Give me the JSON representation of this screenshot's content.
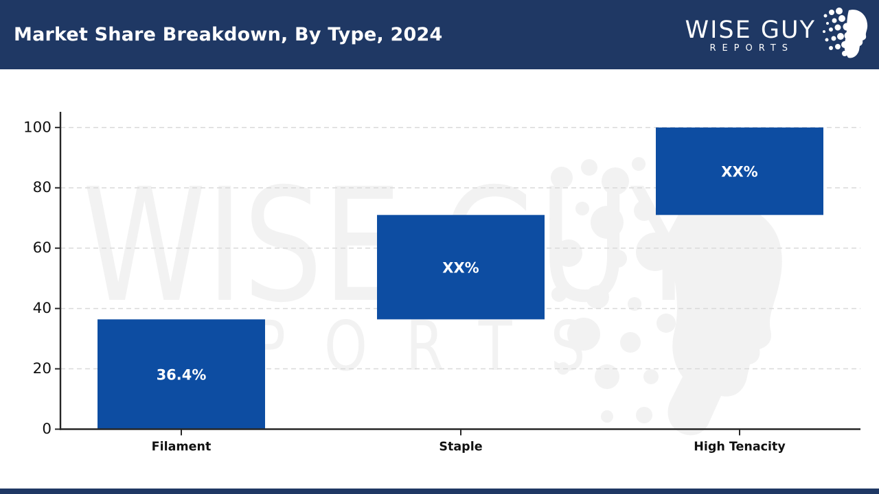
{
  "header": {
    "title": "Market Share Breakdown, By Type, 2024",
    "logo": {
      "line1": "WISE GUY",
      "line2": "REPORTS"
    }
  },
  "watermark": {
    "line1": "WISE GUY",
    "line2": "REPORTS"
  },
  "colors": {
    "header_bg": "#1f3864",
    "bar": "#0d4da2",
    "bar_label": "#ffffff",
    "grid": "#d9d9d9",
    "axis": "#262626",
    "tick_text": "#111111",
    "watermark": "#f2f2f2"
  },
  "chart_data": {
    "type": "bar",
    "subtype": "waterfall",
    "title": "Market Share Breakdown, By Type, 2024",
    "categories": [
      "Filament",
      "Staple",
      "High Tenacity"
    ],
    "segments": [
      {
        "category": "Filament",
        "start": 0,
        "end": 36.4,
        "label": "36.4%"
      },
      {
        "category": "Staple",
        "start": 36.4,
        "end": 71,
        "label": "XX%"
      },
      {
        "category": "High Tenacity",
        "start": 71,
        "end": 100,
        "label": "XX%"
      }
    ],
    "y_ticks": [
      0,
      20,
      40,
      60,
      80,
      100
    ],
    "ylim": [
      0,
      105
    ],
    "xlabel": "",
    "ylabel": "",
    "grid": "horizontal-dashed",
    "legend": "none"
  }
}
